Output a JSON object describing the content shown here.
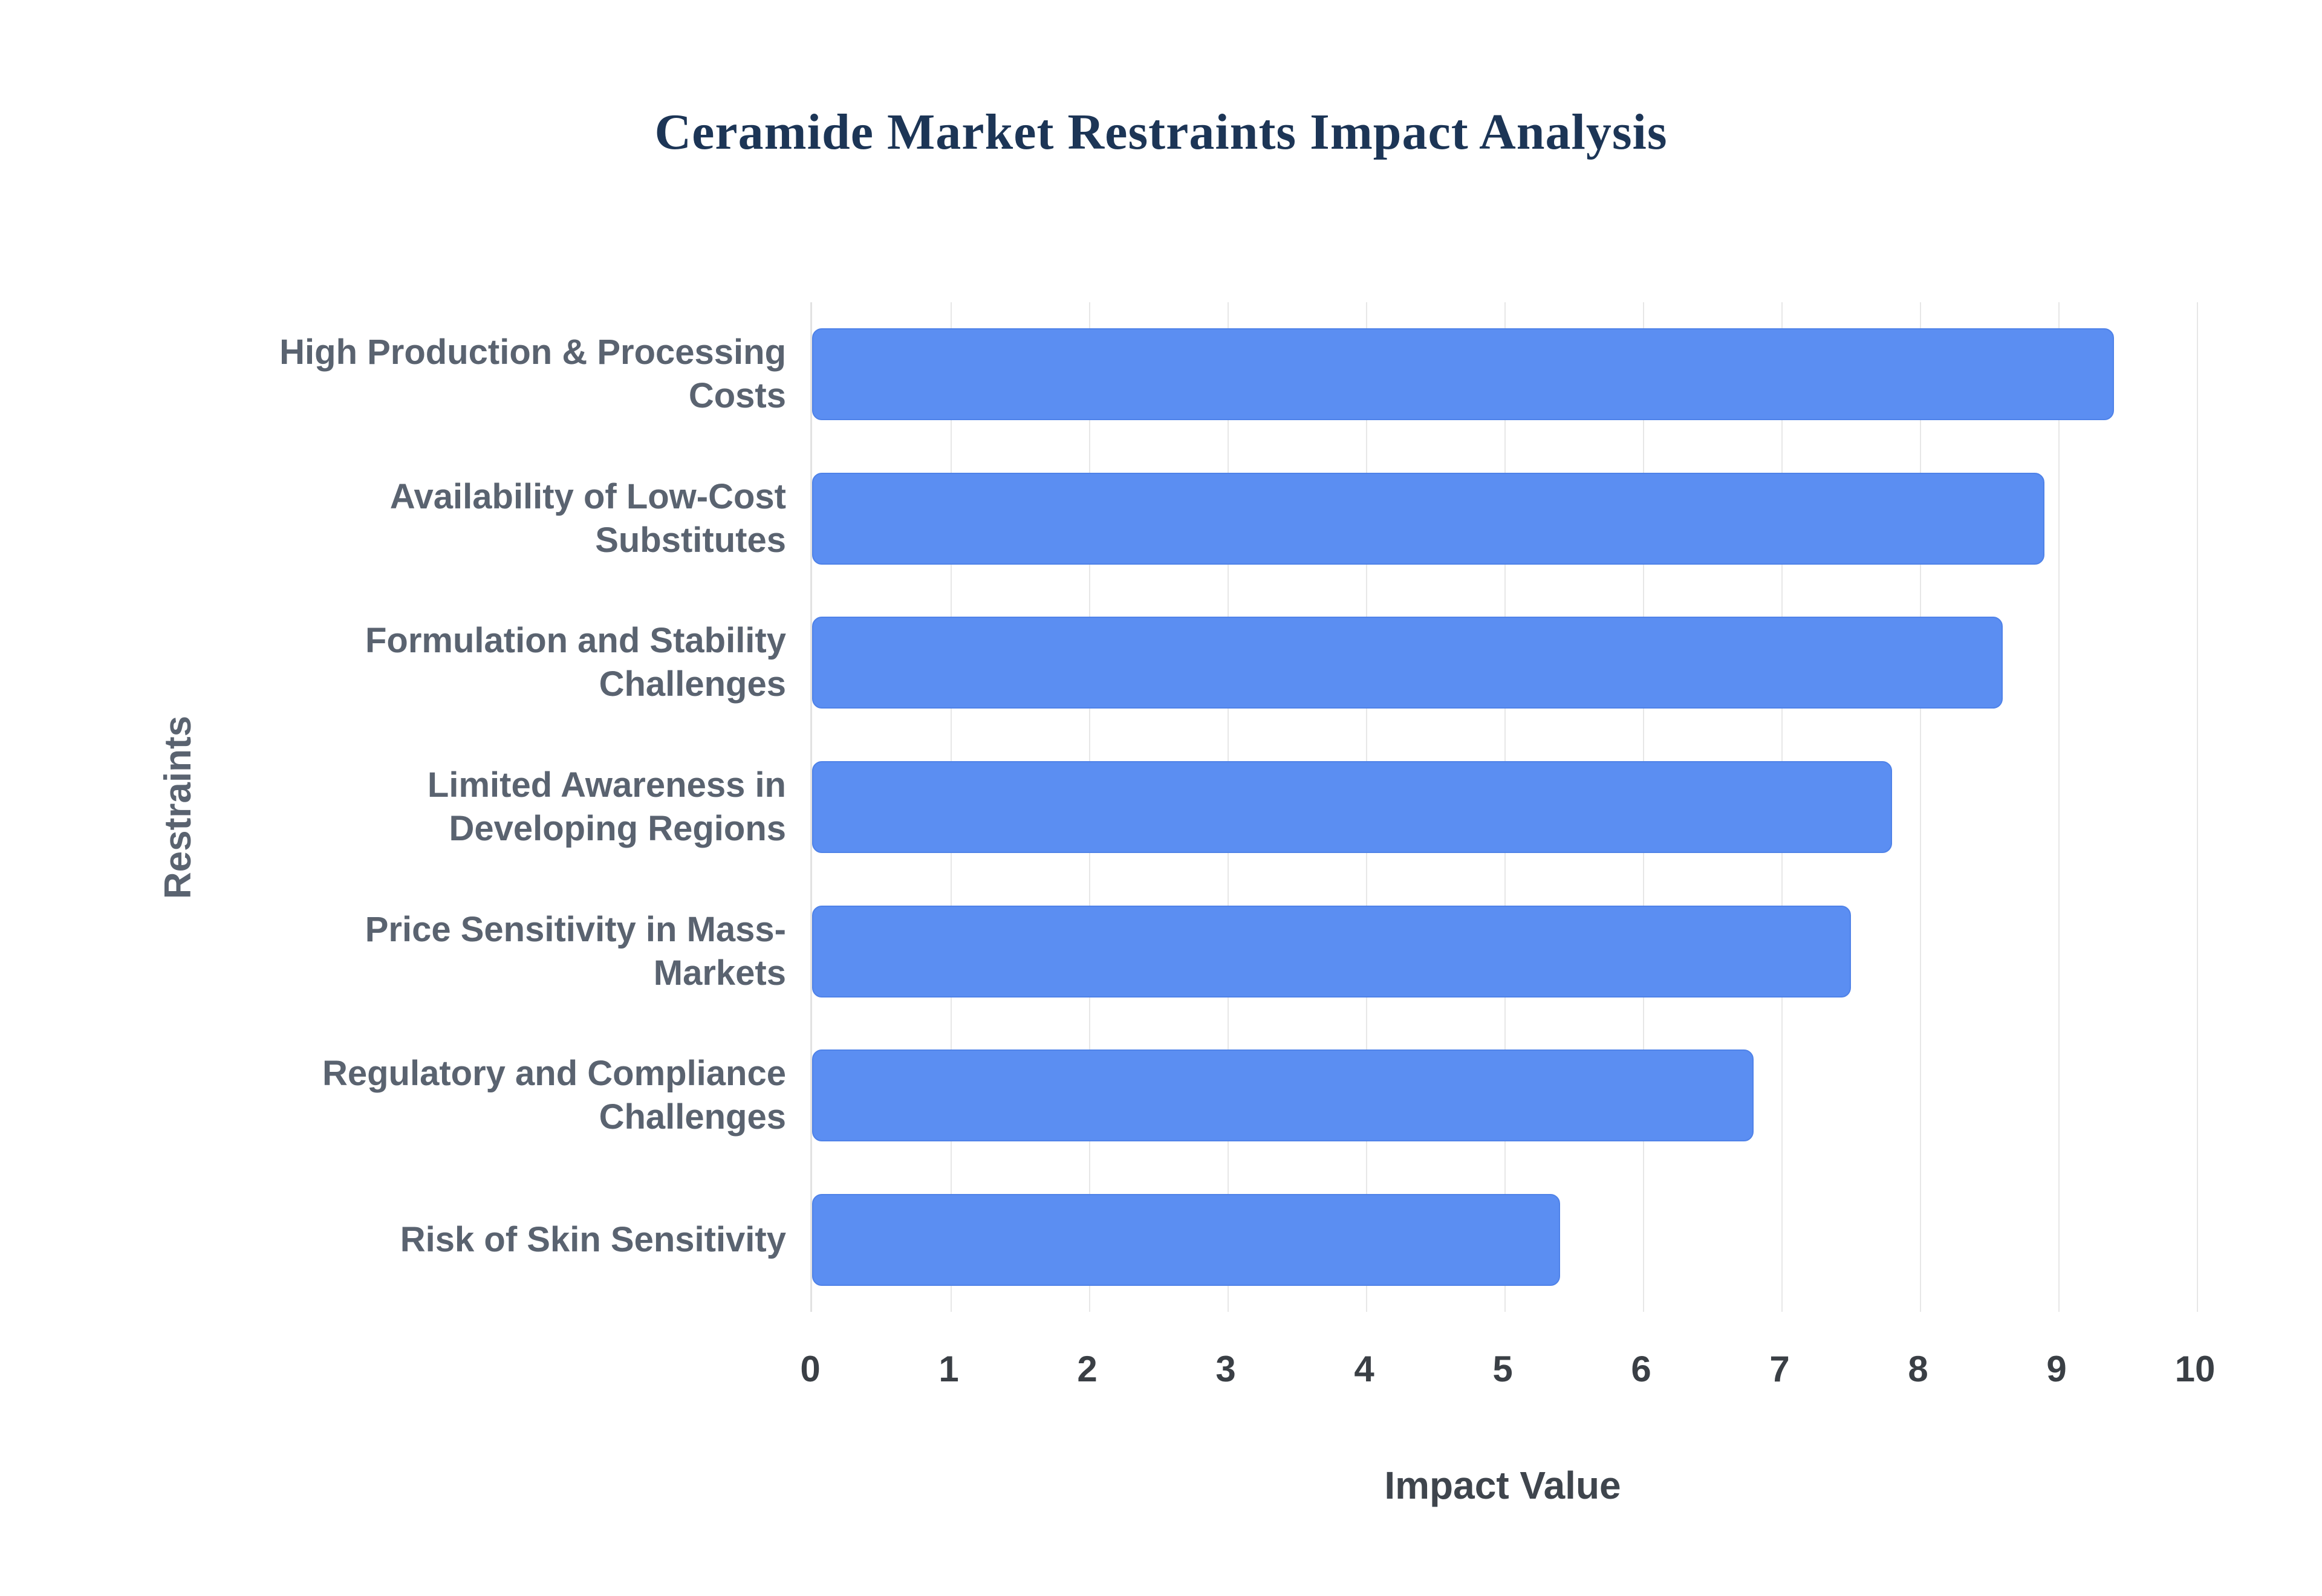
{
  "title": "Ceramide Market Restraints Impact Analysis",
  "chart_data": {
    "type": "bar",
    "orientation": "horizontal",
    "title": "Ceramide Market Restraints Impact Analysis",
    "categories": [
      "High Production & Processing Costs",
      "Availability of Low-Cost Substitutes",
      "Formulation and Stability Challenges",
      "Limited Awareness in Developing Regions",
      "Price Sensitivity in Mass-Markets",
      "Regulatory and Compliance Challenges",
      "Risk of Skin Sensitivity"
    ],
    "values": [
      9.4,
      8.9,
      8.6,
      7.8,
      7.5,
      6.8,
      5.4
    ],
    "xlabel": "Impact Value",
    "ylabel": "Restraints",
    "xlim": [
      0,
      10
    ],
    "xticks": [
      0,
      1,
      2,
      3,
      4,
      5,
      6,
      7,
      8,
      9,
      10
    ],
    "bar_color": "#5b8ef2",
    "grid": true,
    "legend_position": "none"
  }
}
